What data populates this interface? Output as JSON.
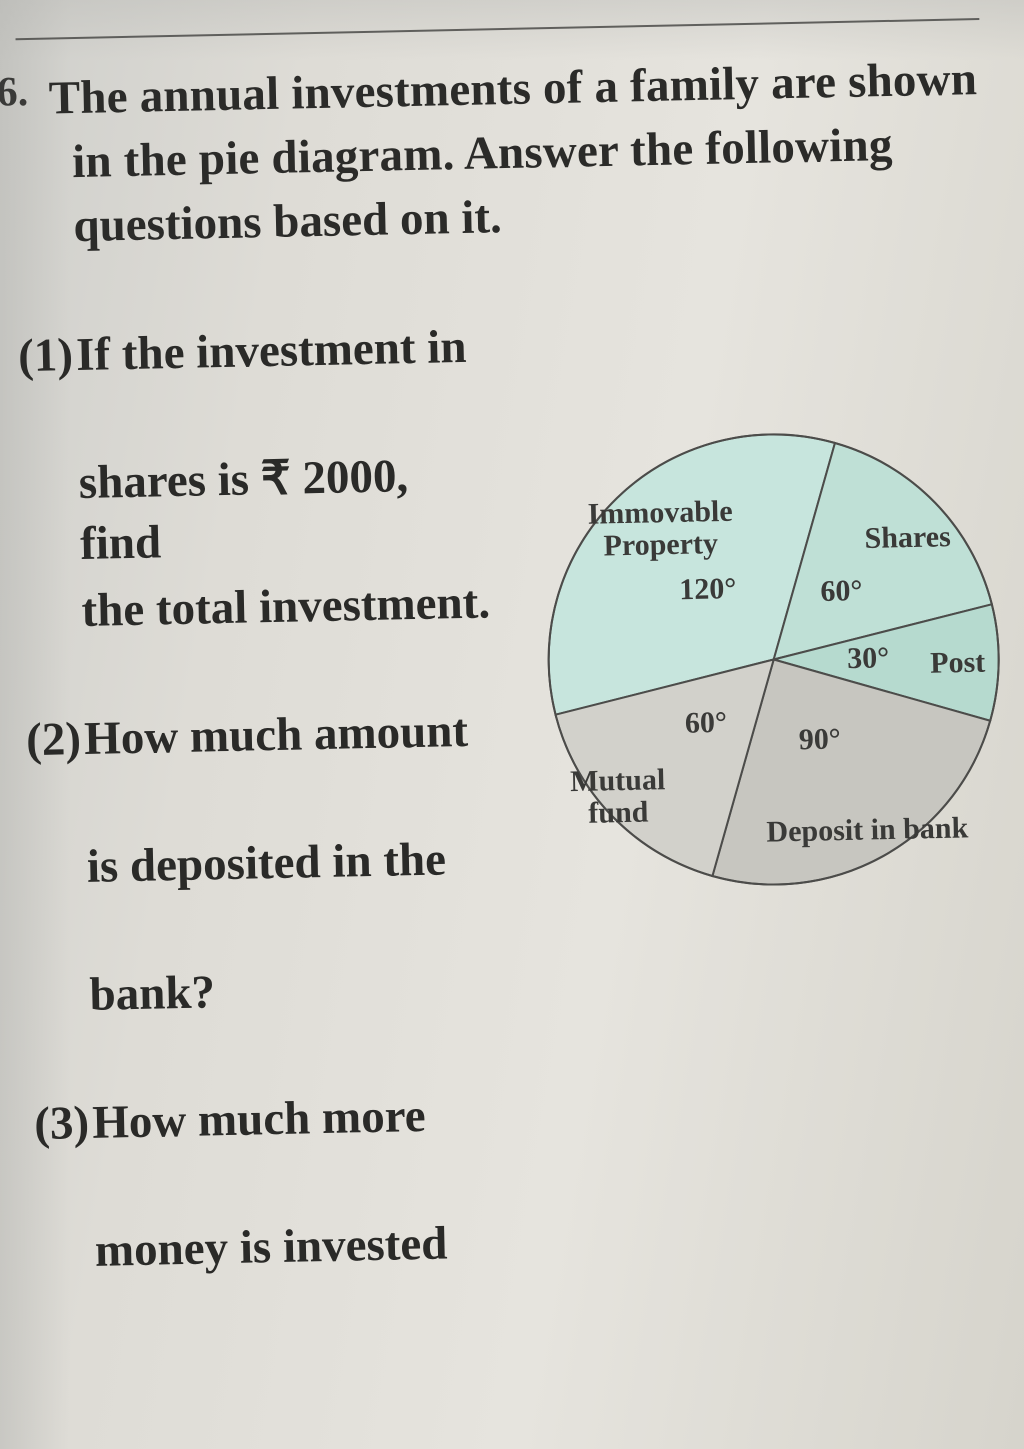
{
  "question": {
    "number": "6.",
    "stem_line1": "The annual investments of a family are shown",
    "stem_line2": "in the pie diagram. Answer the following",
    "stem_line3": "questions based on it."
  },
  "subquestions": {
    "q1": {
      "num": "(1)",
      "l1": "If the investment in",
      "l2": "shares is ₹ 2000, find",
      "l3": "the total investment."
    },
    "q2": {
      "num": "(2)",
      "l1": "How much amount",
      "l2": "is deposited in the",
      "l3": "bank?"
    },
    "q3": {
      "num": "(3)",
      "l1": "How much more",
      "l2": "money is invested"
    }
  },
  "pie": {
    "type": "pie",
    "background_color": "#e4e2da",
    "outline_color": "#4c4c4a",
    "outline_width": 2,
    "label_font_size": 30,
    "angle_font_size": 30,
    "label_color": "#3a3a38",
    "slices": [
      {
        "label": "Immovable Property",
        "angle_deg": 120,
        "angle_text": "120°",
        "fill": "#c7e5dd"
      },
      {
        "label": "Shares",
        "angle_deg": 60,
        "angle_text": "60°",
        "fill": "#bfe0d6"
      },
      {
        "label": "Post",
        "angle_deg": 30,
        "angle_text": "30°",
        "fill": "#b6dacf"
      },
      {
        "label": "Deposit in bank",
        "angle_deg": 90,
        "angle_text": "90°",
        "fill": "#c7c6c0"
      },
      {
        "label": "Mutual fund",
        "angle_deg": 60,
        "angle_text": "60°",
        "fill": "#d2d1cb"
      }
    ],
    "start_angle_deg_clockwise_from_top": -103
  }
}
